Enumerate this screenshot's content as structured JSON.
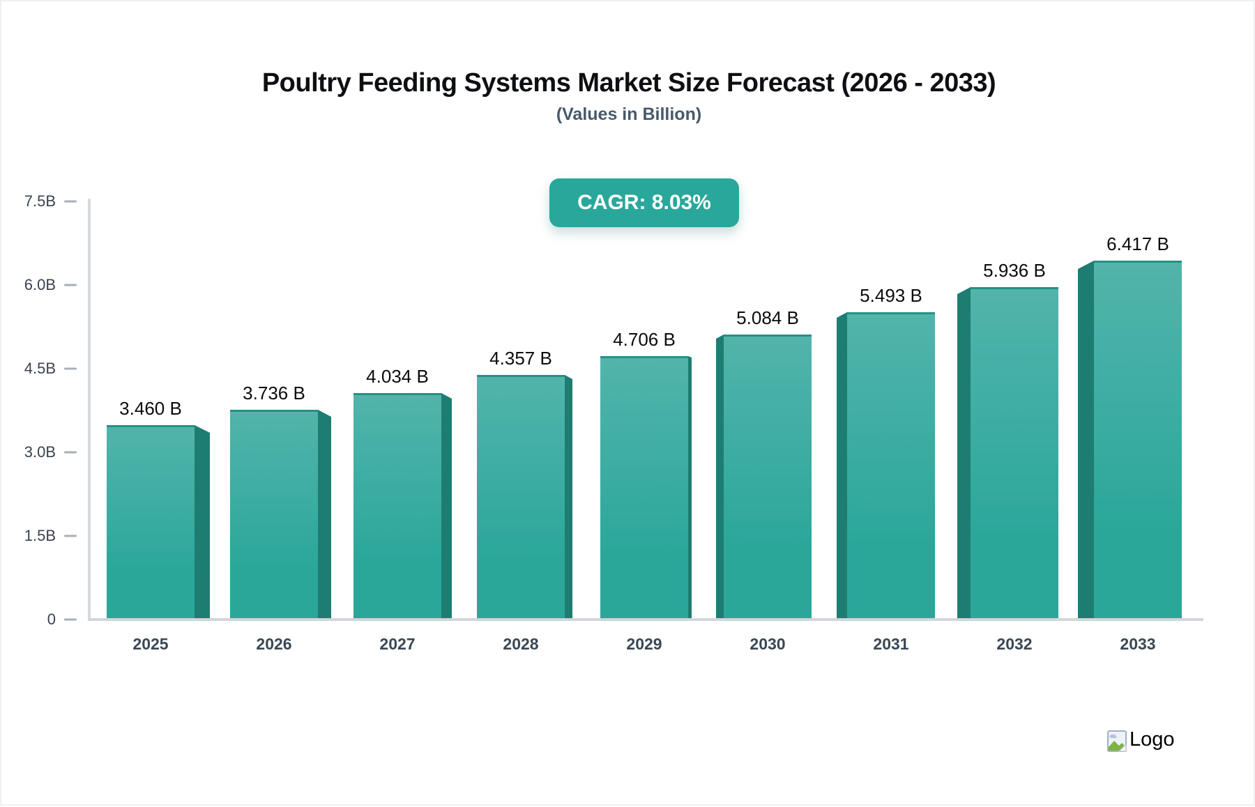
{
  "title": "Poultry Feeding Systems Market Size Forecast (2026 - 2033)",
  "subtitle": "(Values in Billion)",
  "badge": {
    "label": "CAGR: 8.03%"
  },
  "logo": {
    "alt_text": "Logo",
    "icon": "broken-image-icon"
  },
  "colors": {
    "badge_bg": "#2aa79b",
    "bar_top": "#52b4ab",
    "bar_bottom": "#2ba79a",
    "bar_side": "#1e7d72",
    "bar_edge": "#279084",
    "axis_line": "#d2d5d9",
    "tick": "#a9afb8"
  },
  "chart_data": {
    "type": "bar",
    "title": "Poultry Feeding Systems Market Size Forecast (2026 - 2033)",
    "subtitle": "(Values in Billion)",
    "xlabel": "",
    "ylabel": "",
    "categories": [
      "2025",
      "2026",
      "2027",
      "2028",
      "2029",
      "2030",
      "2031",
      "2032",
      "2033"
    ],
    "values": [
      3.46,
      3.736,
      4.034,
      4.357,
      4.706,
      5.084,
      5.493,
      5.936,
      6.417
    ],
    "value_labels": [
      "3.460 B",
      "3.736 B",
      "4.034 B",
      "4.357 B",
      "4.706 B",
      "5.084 B",
      "5.493 B",
      "5.936 B",
      "6.417 B"
    ],
    "y_ticks": [
      {
        "label": "7.5B",
        "value": 7.5
      },
      {
        "label": "6.0B",
        "value": 6.0
      },
      {
        "label": "4.5B",
        "value": 4.5
      },
      {
        "label": "3.0B",
        "value": 3.0
      },
      {
        "label": "1.5B",
        "value": 1.5
      },
      {
        "label": "0",
        "value": 0
      }
    ],
    "ylim": [
      0,
      7.5
    ],
    "grid": false,
    "legend": false,
    "style": "3d-perspective-bars"
  }
}
